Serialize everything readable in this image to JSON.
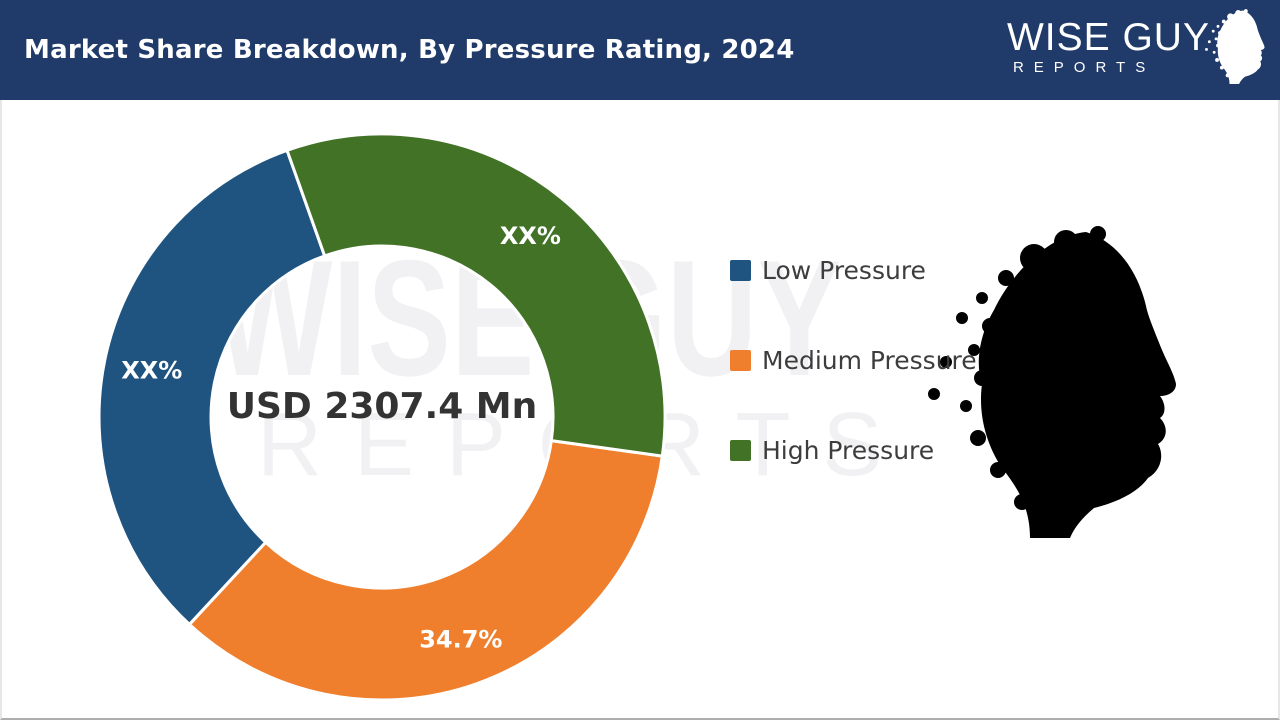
{
  "header": {
    "title": "Market Share Breakdown, By Pressure Rating, 2024",
    "logo": {
      "name": "WISE GUY",
      "subtitle": "REPORTS"
    }
  },
  "watermark": {
    "line1": "WISE GUY",
    "line2": "REPORTS"
  },
  "chart_data": {
    "type": "pie",
    "subtype": "donut",
    "title": "Market Share Breakdown, By Pressure Rating, 2024",
    "center_label": "USD 2307.4 Mn",
    "start_angle_deg": -19.6,
    "direction": "clockwise",
    "inner_radius_ratio": 0.6,
    "legend_position": "right",
    "values_note": "XX% labels are masked in source image; their percentages are estimated from arc angles",
    "segments": [
      {
        "name": "High Pressure",
        "label": "XX%",
        "value_pct": 32.65,
        "color": "#417226"
      },
      {
        "name": "Medium Pressure",
        "label": "34.7%",
        "value_pct": 34.7,
        "color": "#EF7F2D"
      },
      {
        "name": "Low Pressure",
        "label": "XX%",
        "value_pct": 32.65,
        "color": "#1F5480"
      }
    ]
  },
  "legend": {
    "items": [
      {
        "label": "Low Pressure",
        "color": "#1F5480"
      },
      {
        "label": "Medium Pressure",
        "color": "#EF7F2D"
      },
      {
        "label": "High Pressure",
        "color": "#417226"
      }
    ]
  },
  "colors": {
    "header_bg": "#203A69",
    "page_bg": "#FFFFFF",
    "center_text": "#333333",
    "legend_text": "#3D3D3D",
    "watermark": "#F1F1F3",
    "segment_label_text": "#FFFFFF"
  }
}
